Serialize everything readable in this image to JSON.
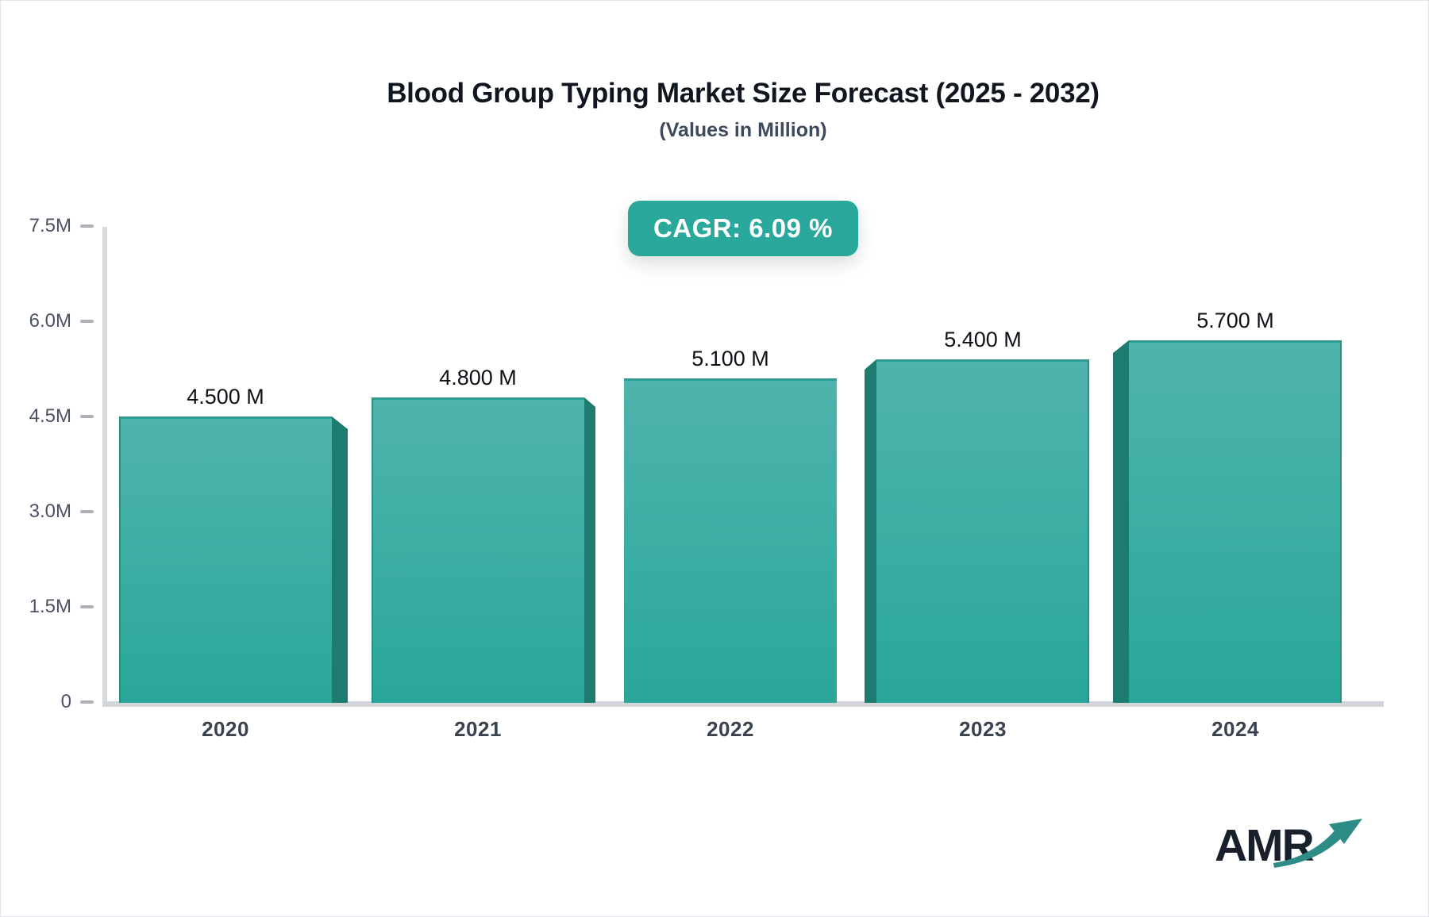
{
  "header": {
    "title": "Blood Group Typing Market Size Forecast (2025 - 2032)",
    "subtitle": "(Values in Million)",
    "cagr_badge": "CAGR: 6.09 %"
  },
  "chart_data": {
    "type": "bar",
    "title": "Blood Group Typing Market Size Forecast (2025 - 2032)",
    "subtitle": "(Values in Million)",
    "cagr_text": "CAGR: 6.09 %",
    "unit": "Million",
    "categories": [
      "2020",
      "2021",
      "2022",
      "2023",
      "2024"
    ],
    "values": [
      4.5,
      4.8,
      5.1,
      5.4,
      5.7
    ],
    "value_labels": [
      "4.500 M",
      "4.800 M",
      "5.100 M",
      "5.400 M",
      "5.700 M"
    ],
    "ylim": [
      0,
      7.5
    ],
    "yticks": [
      {
        "label": "7.5M",
        "value": 7.5
      },
      {
        "label": "6.0M",
        "value": 6.0
      },
      {
        "label": "4.5M",
        "value": 4.5
      },
      {
        "label": "3.0M",
        "value": 3.0
      },
      {
        "label": "1.5M",
        "value": 1.5
      },
      {
        "label": "0",
        "value": 0
      }
    ],
    "grid": false,
    "legend": false,
    "colors": {
      "bar_top": "#4fb4ab",
      "bar_bottom": "#2aa79a",
      "bar_edge": "#2e9c90",
      "bar_side": "#1e7b6f",
      "badge_bg": "#2aa89b",
      "axis": "#d2d5da",
      "tick_label": "#4a5363",
      "value_label": "#0d1117",
      "category_label": "#39424f"
    }
  },
  "logo": {
    "text": "AMR",
    "color": "#17202b",
    "arrow_color": "#2d8c85"
  }
}
